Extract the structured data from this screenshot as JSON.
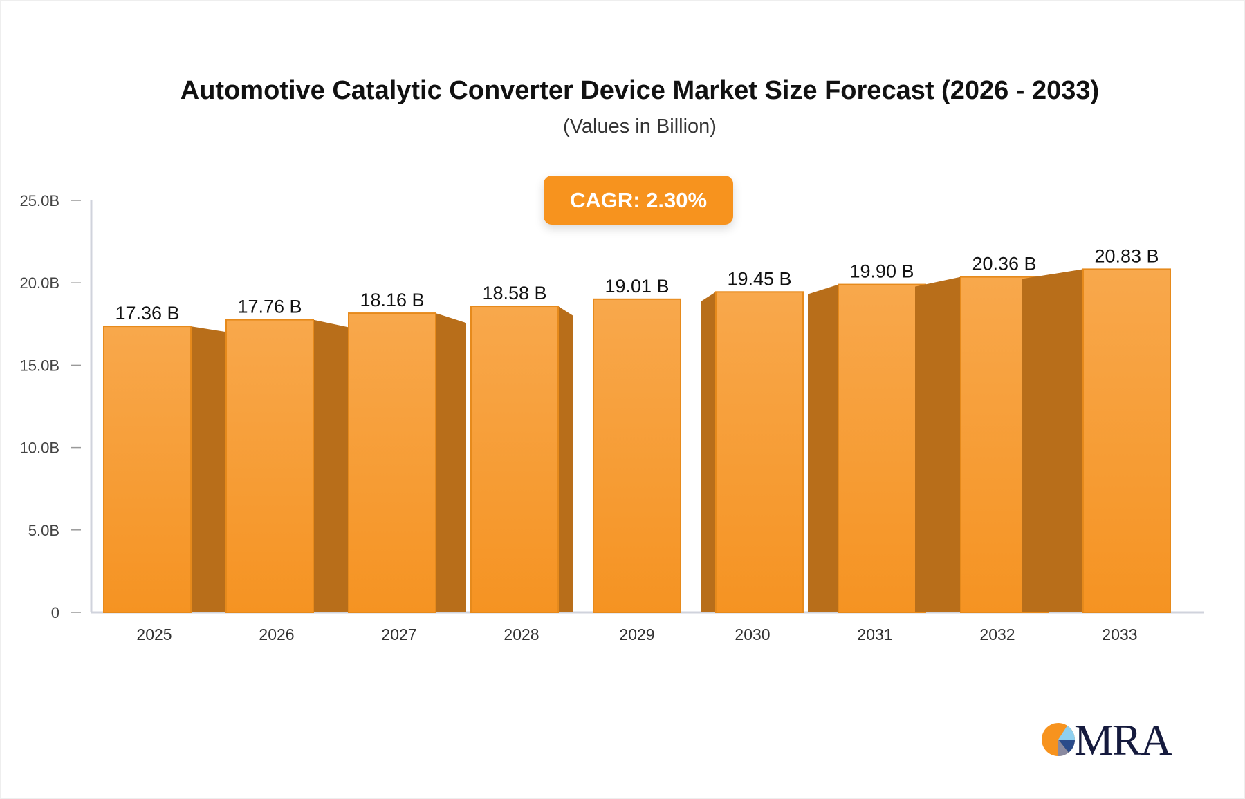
{
  "chart_data": {
    "type": "bar",
    "title": "Automotive Catalytic Converter Device Market Size Forecast (2026 - 2033)",
    "subtitle": "(Values in Billion)",
    "annotation": "CAGR: 2.30%",
    "categories": [
      "2025",
      "2026",
      "2027",
      "2028",
      "2029",
      "2030",
      "2031",
      "2032",
      "2033"
    ],
    "values": [
      17.36,
      17.76,
      18.16,
      18.58,
      19.01,
      19.45,
      19.9,
      20.36,
      20.83
    ],
    "data_labels": [
      "17.36 B",
      "17.76 B",
      "18.16 B",
      "18.58 B",
      "19.01 B",
      "19.45 B",
      "19.90 B",
      "20.36 B",
      "20.83 B"
    ],
    "ylim": [
      0,
      25
    ],
    "yticks": [
      0,
      5,
      10,
      15,
      20,
      25
    ],
    "ytick_labels": [
      "0",
      "5.0B",
      "10.0B",
      "15.0B",
      "20.0B",
      "25.0B"
    ],
    "xlabel": "",
    "ylabel": "",
    "grid": false,
    "colors": {
      "bar_front": "#f7a240",
      "bar_side": "#b86e1a",
      "axis": "#d0d3dc"
    }
  },
  "logo": {
    "text": "MRA"
  }
}
